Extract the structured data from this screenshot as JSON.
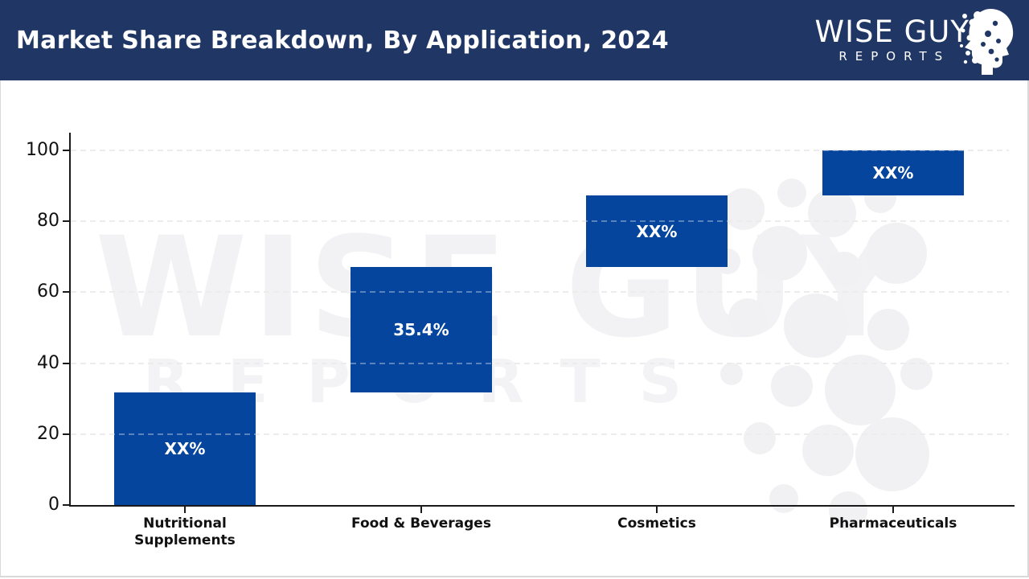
{
  "header": {
    "title": "Market Share Breakdown, By Application, 2024",
    "logo": {
      "line1": "WISE GUY",
      "line2": "REPORTS"
    }
  },
  "watermark": {
    "line1": "WISE GUY",
    "line2": "REPORTS"
  },
  "chart_data": {
    "type": "bar",
    "subtype": "waterfall-floating-bars",
    "title": "Market Share Breakdown, By Application, 2024",
    "categories": [
      "Nutritional Supplements",
      "Food & Beverages",
      "Cosmetics",
      "Pharmaceuticals"
    ],
    "segments": [
      {
        "category": "Nutritional Supplements",
        "base": 0,
        "top": 31.7,
        "label": "XX%"
      },
      {
        "category": "Food & Beverages",
        "base": 31.7,
        "top": 67.1,
        "label": "35.4%"
      },
      {
        "category": "Cosmetics",
        "base": 67.1,
        "top": 87.2,
        "label": "XX%"
      },
      {
        "category": "Pharmaceuticals",
        "base": 87.2,
        "top": 100,
        "label": "XX%"
      }
    ],
    "ylim": [
      0,
      100
    ],
    "yticks": [
      0,
      20,
      40,
      60,
      80,
      100
    ],
    "xlabel": "",
    "ylabel": "",
    "grid": "horizontal-dashed",
    "legend": "none",
    "bar_color": "#05459d"
  },
  "colors": {
    "header_bg": "#203765",
    "bar": "#05459d",
    "grid": "#e2e2e2",
    "axis": "#1a1a1a",
    "watermark": "#f2f2f4",
    "border": "#d9d9d9"
  }
}
